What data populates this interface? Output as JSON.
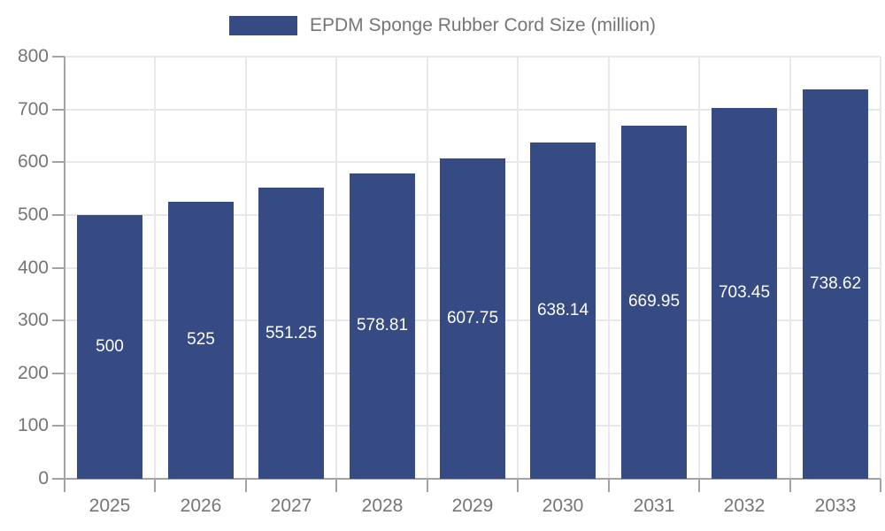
{
  "legend": {
    "label": "EPDM Sponge Rubber Cord Size (million)"
  },
  "chart_data": {
    "type": "bar",
    "title": "EPDM Sponge Rubber Cord Size (million)",
    "categories": [
      "2025",
      "2026",
      "2027",
      "2028",
      "2029",
      "2030",
      "2031",
      "2032",
      "2033"
    ],
    "values": [
      500,
      525,
      551.25,
      578.81,
      607.75,
      638.14,
      669.95,
      703.45,
      738.62
    ],
    "value_labels": [
      "500",
      "525",
      "551.25",
      "578.81",
      "607.75",
      "638.14",
      "669.95",
      "703.45",
      "738.62"
    ],
    "xlabel": "",
    "ylabel": "",
    "ylim": [
      0,
      800
    ],
    "ytick_step": 100,
    "ytick_labels": [
      "0",
      "100",
      "200",
      "300",
      "400",
      "500",
      "600",
      "700",
      "800"
    ],
    "grid": true,
    "legend_position": "top",
    "bar_color": "#364a83",
    "value_label_color": "#ffffff",
    "axis_color": "#a3a3a3",
    "grid_color": "#e8e8e8",
    "tick_text_color": "#757575"
  }
}
